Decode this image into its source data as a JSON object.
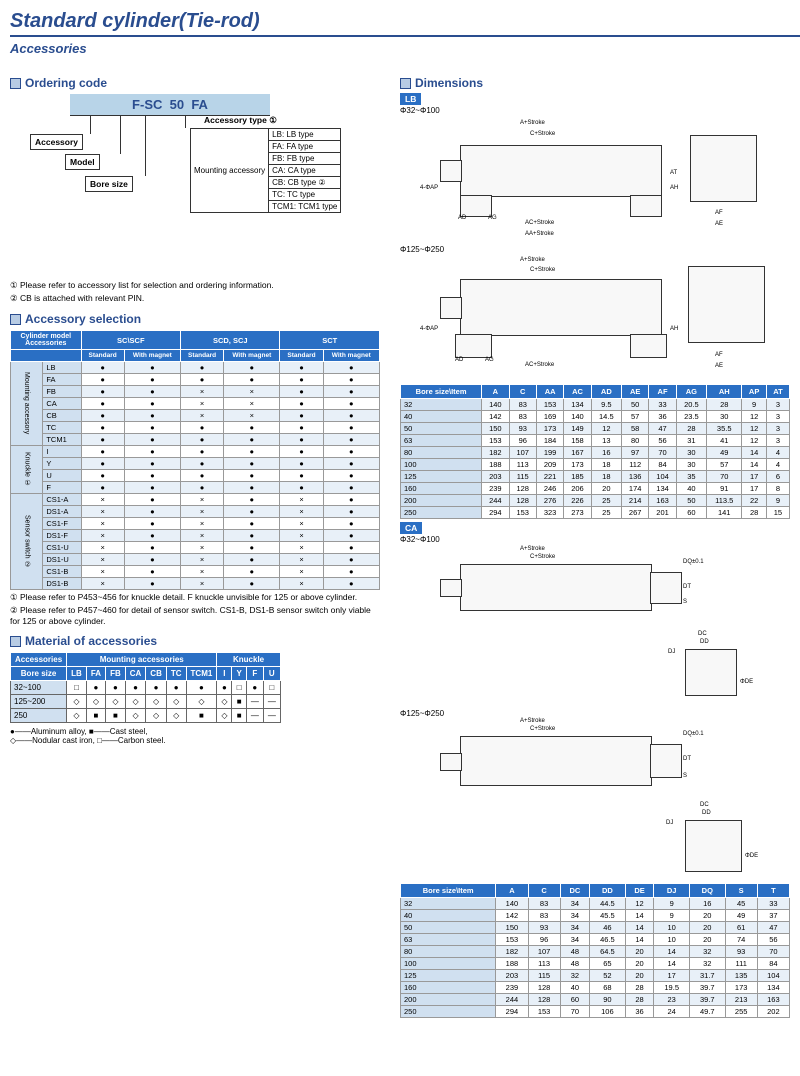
{
  "title": "Standard cylinder(Tie-rod)",
  "subtitle": "Accessories",
  "ordering": {
    "header": "Ordering code",
    "code_parts": [
      "F-SC",
      "50",
      "FA"
    ],
    "labels": {
      "accessory": "Accessory",
      "model": "Model",
      "bore": "Bore size",
      "type": "Accessory type",
      "mounting": "Mounting accessory"
    },
    "type_rows": [
      "LB: LB type",
      "FA: FA type",
      "FB: FB type",
      "CA: CA type",
      "CB: CB type ②",
      "TC: TC type",
      "TCM1: TCM1 type"
    ],
    "notes": [
      "① Please refer to accessory list for selection and ordering information.",
      "② CB is attached with relevant PIN."
    ]
  },
  "selection": {
    "header": "Accessory selection",
    "col_groups": [
      "SC\\SCF",
      "SCD, SCJ",
      "SCT"
    ],
    "col_sub": [
      "Standard",
      "With magnet",
      "Standard",
      "With magnet",
      "Standard",
      "With magnet"
    ],
    "group_labels": [
      "Mounting accessory",
      "Knuckle ①",
      "Sensor switch ②"
    ],
    "rows": [
      {
        "g": 0,
        "n": "LB",
        "v": [
          "●",
          "●",
          "●",
          "●",
          "●",
          "●"
        ]
      },
      {
        "g": 0,
        "n": "FA",
        "v": [
          "●",
          "●",
          "●",
          "●",
          "●",
          "●"
        ]
      },
      {
        "g": 0,
        "n": "FB",
        "v": [
          "●",
          "●",
          "×",
          "×",
          "●",
          "●"
        ]
      },
      {
        "g": 0,
        "n": "CA",
        "v": [
          "●",
          "●",
          "×",
          "×",
          "●",
          "●"
        ]
      },
      {
        "g": 0,
        "n": "CB",
        "v": [
          "●",
          "●",
          "×",
          "×",
          "●",
          "●"
        ]
      },
      {
        "g": 0,
        "n": "TC",
        "v": [
          "●",
          "●",
          "●",
          "●",
          "●",
          "●"
        ]
      },
      {
        "g": 0,
        "n": "TCM1",
        "v": [
          "●",
          "●",
          "●",
          "●",
          "●",
          "●"
        ]
      },
      {
        "g": 1,
        "n": "I",
        "v": [
          "●",
          "●",
          "●",
          "●",
          "●",
          "●"
        ]
      },
      {
        "g": 1,
        "n": "Y",
        "v": [
          "●",
          "●",
          "●",
          "●",
          "●",
          "●"
        ]
      },
      {
        "g": 1,
        "n": "U",
        "v": [
          "●",
          "●",
          "●",
          "●",
          "●",
          "●"
        ]
      },
      {
        "g": 1,
        "n": "F",
        "v": [
          "●",
          "●",
          "●",
          "●",
          "●",
          "●"
        ]
      },
      {
        "g": 2,
        "n": "CS1-A",
        "v": [
          "×",
          "●",
          "×",
          "●",
          "×",
          "●"
        ]
      },
      {
        "g": 2,
        "n": "DS1-A",
        "v": [
          "×",
          "●",
          "×",
          "●",
          "×",
          "●"
        ]
      },
      {
        "g": 2,
        "n": "CS1-F",
        "v": [
          "×",
          "●",
          "×",
          "●",
          "×",
          "●"
        ]
      },
      {
        "g": 2,
        "n": "DS1-F",
        "v": [
          "×",
          "●",
          "×",
          "●",
          "×",
          "●"
        ]
      },
      {
        "g": 2,
        "n": "CS1-U",
        "v": [
          "×",
          "●",
          "×",
          "●",
          "×",
          "●"
        ]
      },
      {
        "g": 2,
        "n": "DS1-U",
        "v": [
          "×",
          "●",
          "×",
          "●",
          "×",
          "●"
        ]
      },
      {
        "g": 2,
        "n": "CS1-B",
        "v": [
          "×",
          "●",
          "×",
          "●",
          "×",
          "●"
        ]
      },
      {
        "g": 2,
        "n": "DS1-B",
        "v": [
          "×",
          "●",
          "×",
          "●",
          "×",
          "●"
        ]
      }
    ],
    "notes": [
      "① Please refer to P453~456 for knuckle detail. F knuckle unvisible for 125 or above cylinder.",
      "② Please refer to P457~460 for detail of sensor switch. CS1-B, DS1-B sensor switch only viable for 125 or above cylinder."
    ]
  },
  "material": {
    "header": "Material of accessories",
    "group_headers": [
      "Accessories",
      "Mounting accessories",
      "Knuckle"
    ],
    "cols": [
      "Bore size",
      "LB",
      "FA",
      "FB",
      "CA",
      "CB",
      "TC",
      "TCM1",
      "I",
      "Y",
      "F",
      "U"
    ],
    "rows": [
      {
        "n": "32~100",
        "v": [
          "□",
          "●",
          "●",
          "●",
          "●",
          "●",
          "●",
          "●",
          "□",
          "●",
          "□"
        ]
      },
      {
        "n": "125~200",
        "v": [
          "◇",
          "◇",
          "◇",
          "◇",
          "◇",
          "◇",
          "◇",
          "◇",
          "■",
          "—",
          "—"
        ]
      },
      {
        "n": "250",
        "v": [
          "◇",
          "■",
          "■",
          "◇",
          "◇",
          "◇",
          "■",
          "◇",
          "■",
          "—",
          "—"
        ]
      }
    ],
    "legend": "●——Aluminum alloy, ■——Cast steel,\n◇——Nodular cast iron, □——Carbon steel."
  },
  "dimensions": {
    "header": "Dimensions",
    "lb": {
      "tag": "LB",
      "ranges": [
        "Φ32~Φ100",
        "Φ125~Φ250"
      ],
      "diagram_labels": [
        "A+Stroke",
        "C+Stroke",
        "AC+Stroke",
        "AA+Stroke",
        "4-ΦAP",
        "AD",
        "AG",
        "AH",
        "AT",
        "AF",
        "AE"
      ],
      "cols": [
        "Bore size\\Item",
        "A",
        "C",
        "AA",
        "AC",
        "AD",
        "AE",
        "AF",
        "AG",
        "AH",
        "AP",
        "AT"
      ],
      "rows": [
        [
          "32",
          "140",
          "83",
          "153",
          "134",
          "9.5",
          "50",
          "33",
          "20.5",
          "28",
          "9",
          "3"
        ],
        [
          "40",
          "142",
          "83",
          "169",
          "140",
          "14.5",
          "57",
          "36",
          "23.5",
          "30",
          "12",
          "3"
        ],
        [
          "50",
          "150",
          "93",
          "173",
          "149",
          "12",
          "58",
          "47",
          "28",
          "35.5",
          "12",
          "3"
        ],
        [
          "63",
          "153",
          "96",
          "184",
          "158",
          "13",
          "80",
          "56",
          "31",
          "41",
          "12",
          "3"
        ],
        [
          "80",
          "182",
          "107",
          "199",
          "167",
          "16",
          "97",
          "70",
          "30",
          "49",
          "14",
          "4"
        ],
        [
          "100",
          "188",
          "113",
          "209",
          "173",
          "18",
          "112",
          "84",
          "30",
          "57",
          "14",
          "4"
        ],
        [
          "125",
          "203",
          "115",
          "221",
          "185",
          "18",
          "136",
          "104",
          "35",
          "70",
          "17",
          "6"
        ],
        [
          "160",
          "239",
          "128",
          "246",
          "206",
          "20",
          "174",
          "134",
          "40",
          "91",
          "17",
          "8"
        ],
        [
          "200",
          "244",
          "128",
          "276",
          "226",
          "25",
          "214",
          "163",
          "50",
          "113.5",
          "22",
          "9"
        ],
        [
          "250",
          "294",
          "153",
          "323",
          "273",
          "25",
          "267",
          "201",
          "60",
          "141",
          "28",
          "15"
        ]
      ]
    },
    "ca": {
      "tag": "CA",
      "ranges": [
        "Φ32~Φ100",
        "Φ125~Φ250"
      ],
      "diagram_labels": [
        "A+Stroke",
        "C+Stroke",
        "DQ±0.1",
        "DT",
        "S",
        "DD",
        "DC",
        "DJ",
        "ΦDE"
      ],
      "cols": [
        "Bore size\\Item",
        "A",
        "C",
        "DC",
        "DD",
        "DE",
        "DJ",
        "DQ",
        "S",
        "T"
      ],
      "rows": [
        [
          "32",
          "140",
          "83",
          "34",
          "44.5",
          "12",
          "9",
          "16",
          "45",
          "33"
        ],
        [
          "40",
          "142",
          "83",
          "34",
          "45.5",
          "14",
          "9",
          "20",
          "49",
          "37"
        ],
        [
          "50",
          "150",
          "93",
          "34",
          "46",
          "14",
          "10",
          "20",
          "61",
          "47"
        ],
        [
          "63",
          "153",
          "96",
          "34",
          "46.5",
          "14",
          "10",
          "20",
          "74",
          "56"
        ],
        [
          "80",
          "182",
          "107",
          "48",
          "64.5",
          "20",
          "14",
          "32",
          "93",
          "70"
        ],
        [
          "100",
          "188",
          "113",
          "48",
          "65",
          "20",
          "14",
          "32",
          "111",
          "84"
        ],
        [
          "125",
          "203",
          "115",
          "32",
          "52",
          "20",
          "17",
          "31.7",
          "135",
          "104"
        ],
        [
          "160",
          "239",
          "128",
          "40",
          "68",
          "28",
          "19.5",
          "39.7",
          "173",
          "134"
        ],
        [
          "200",
          "244",
          "128",
          "60",
          "90",
          "28",
          "23",
          "39.7",
          "213",
          "163"
        ],
        [
          "250",
          "294",
          "153",
          "70",
          "106",
          "36",
          "24",
          "49.7",
          "255",
          "202"
        ]
      ]
    }
  }
}
